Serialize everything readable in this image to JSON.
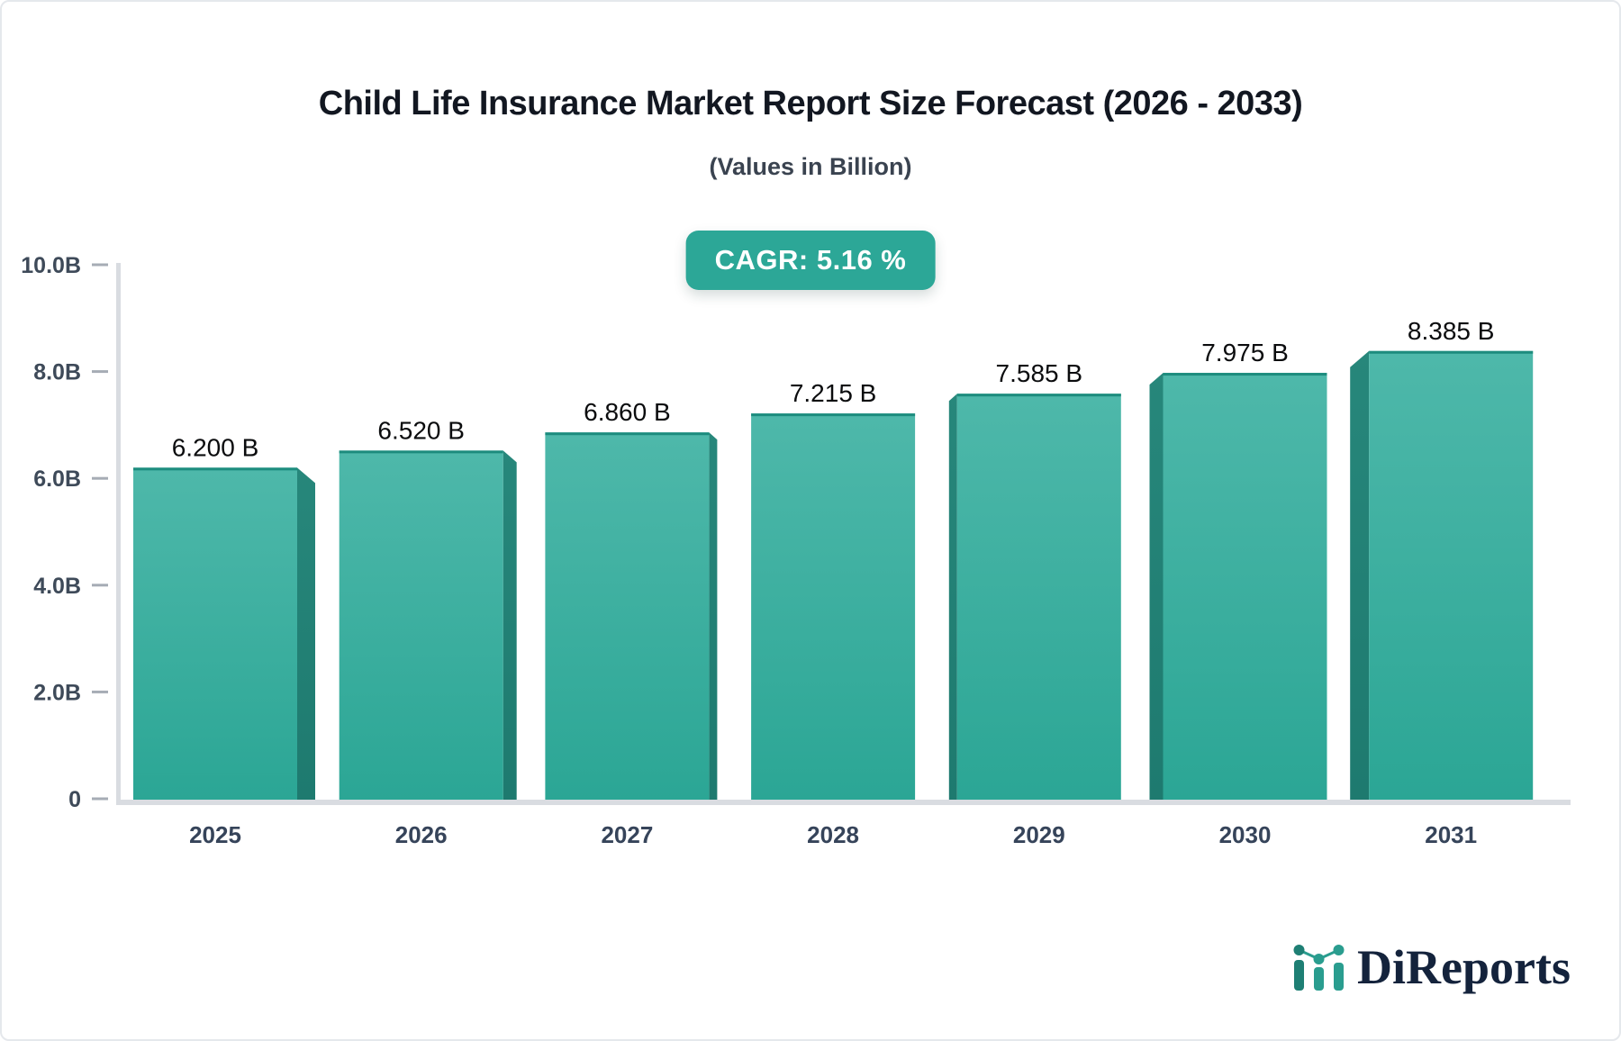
{
  "chart_data": {
    "type": "bar",
    "title": "Child Life Insurance Market Report Size Forecast (2026 - 2033)",
    "subtitle": "(Values in Billion)",
    "cagr_badge": "CAGR: 5.16 %",
    "categories": [
      "2025",
      "2026",
      "2027",
      "2028",
      "2029",
      "2030",
      "2031"
    ],
    "values": [
      6.2,
      6.52,
      6.86,
      7.215,
      7.585,
      7.975,
      8.385
    ],
    "value_labels": [
      "6.200 B",
      "6.520 B",
      "6.860 B",
      "7.215 B",
      "7.585 B",
      "7.975 B",
      "8.385 B"
    ],
    "ylim": [
      0,
      10
    ],
    "yticks": [
      0,
      2,
      4,
      6,
      8,
      10
    ],
    "ytick_labels": [
      "0",
      "2.0B",
      "4.0B",
      "6.0B",
      "8.0B",
      "10.0B"
    ],
    "grid": false,
    "legend": false,
    "colors": {
      "bar_face_top": "#4EB8AA",
      "bar_face_bottom": "#2BA695",
      "bar_side": "#1E7A6F",
      "bar_top_edge": "#1D8C7E",
      "badge_bg": "#2CA797",
      "axis_line": "#D9DCE1",
      "tick_dash": "#A6ACB5",
      "axis_label": "#3E4A59",
      "year_label": "#36445A",
      "value_label": "#0B0C0E"
    }
  },
  "logo": {
    "text": "DiReports",
    "icon": "mini-bar-line-chart-icon",
    "text_color": "#14233C",
    "icon_color": "#2A9D8F",
    "icon_dark_color": "#1E7F74"
  }
}
